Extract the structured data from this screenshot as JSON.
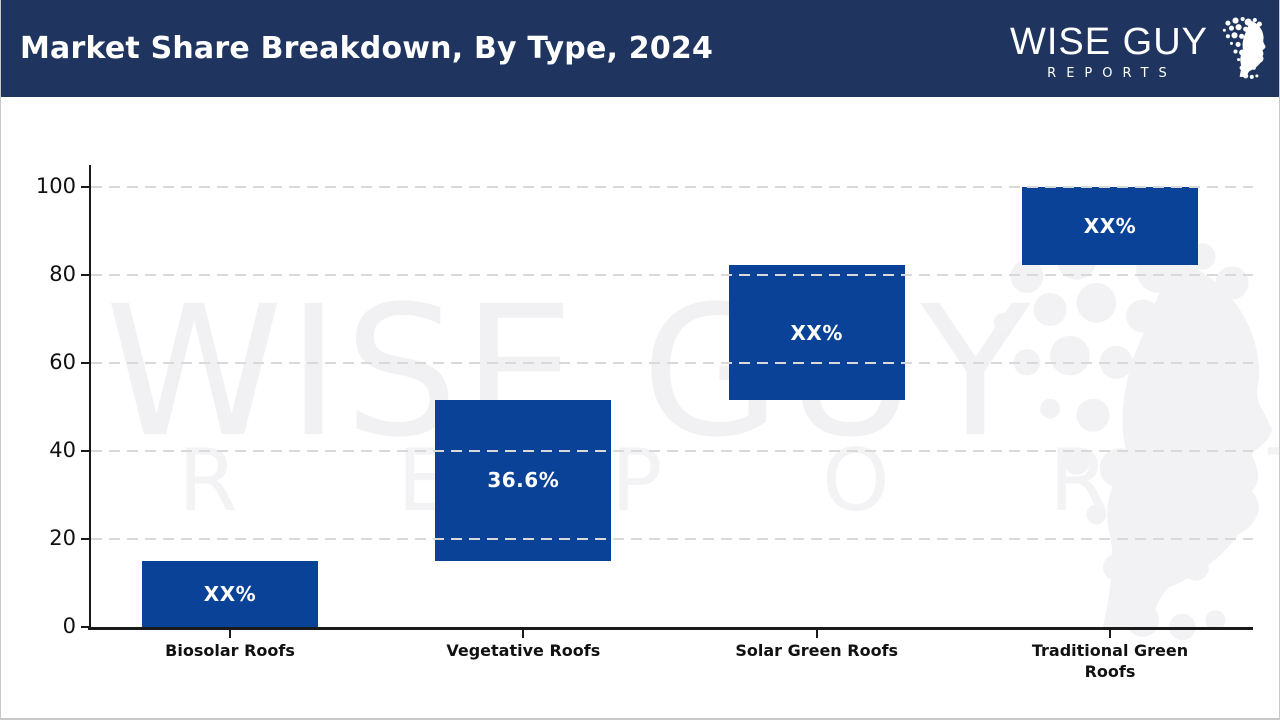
{
  "page": {
    "bg": "#ffffff",
    "border_color": "#c9c9c9"
  },
  "header": {
    "bg": "#1f3560",
    "title": "Market Share Breakdown, By Type, 2024",
    "logo": {
      "name": "WISE GUY",
      "sub": "REPORTS"
    }
  },
  "watermark": {
    "line1": "WISE GUY",
    "line2": "R E P O R T S"
  },
  "chart_data": {
    "type": "bar",
    "subtype": "floating-waterfall",
    "title": "Market Share Breakdown, By Type, 2024",
    "categories": [
      "Biosolar Roofs",
      "Vegetative Roofs",
      "Solar Green Roofs",
      "Traditional Green Roofs"
    ],
    "bars": [
      {
        "category": "Biosolar Roofs",
        "start": 0,
        "end": 15,
        "label": "XX%"
      },
      {
        "category": "Vegetative Roofs",
        "start": 15,
        "end": 51.6,
        "label": "36.6%"
      },
      {
        "category": "Solar Green Roofs",
        "start": 51.6,
        "end": 82.2,
        "label": "XX%"
      },
      {
        "category": "Traditional Green Roofs",
        "start": 82.2,
        "end": 100,
        "label": "XX%"
      }
    ],
    "bar_color": "#0a4298",
    "bar_label_color": "#ffffff",
    "yticks": [
      0,
      20,
      40,
      60,
      80,
      100
    ],
    "ylim": [
      0,
      105
    ],
    "xlabel": "",
    "ylabel": "",
    "grid": {
      "axis": "y",
      "style": "dashed",
      "color": "#d9d9d9",
      "above_bars": true
    },
    "legend": null
  }
}
